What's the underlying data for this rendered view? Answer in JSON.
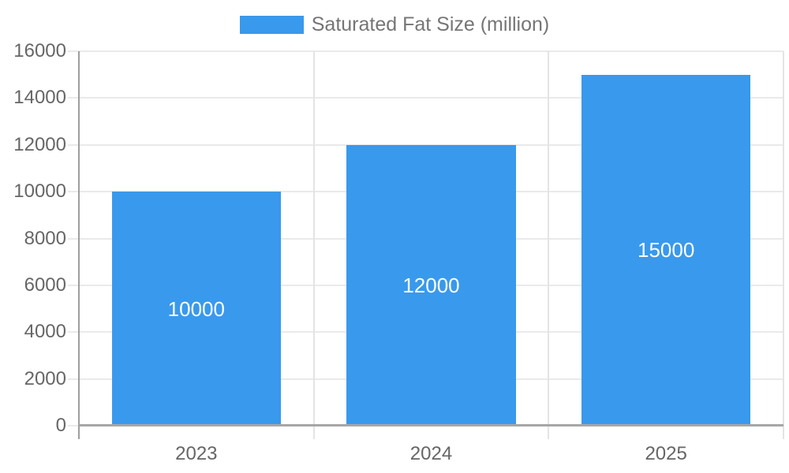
{
  "chart_data": {
    "type": "bar",
    "title": "",
    "categories": [
      "2023",
      "2024",
      "2025"
    ],
    "series": [
      {
        "name": "Saturated Fat Size (million)",
        "values": [
          10000,
          12000,
          15000
        ]
      }
    ],
    "bar_value_labels": [
      "10000",
      "12000",
      "15000"
    ],
    "xlabel": "",
    "ylabel": "",
    "ylim": [
      0,
      16000
    ],
    "y_ticks": [
      0,
      2000,
      4000,
      6000,
      8000,
      10000,
      12000,
      14000,
      16000
    ],
    "grid": "on",
    "legend_position": "top",
    "colors": {
      "bar": "#3999EC",
      "bar_value_label": "#FFFFFF",
      "axis_label": "#666666",
      "legend_text": "#757575",
      "gridline": "#EAEAEA",
      "category_separator": "#E4E4E4",
      "y_axis_line": "#9E9E9E",
      "baseline": "#A6A6A6",
      "background": "#FFFFFF"
    }
  }
}
